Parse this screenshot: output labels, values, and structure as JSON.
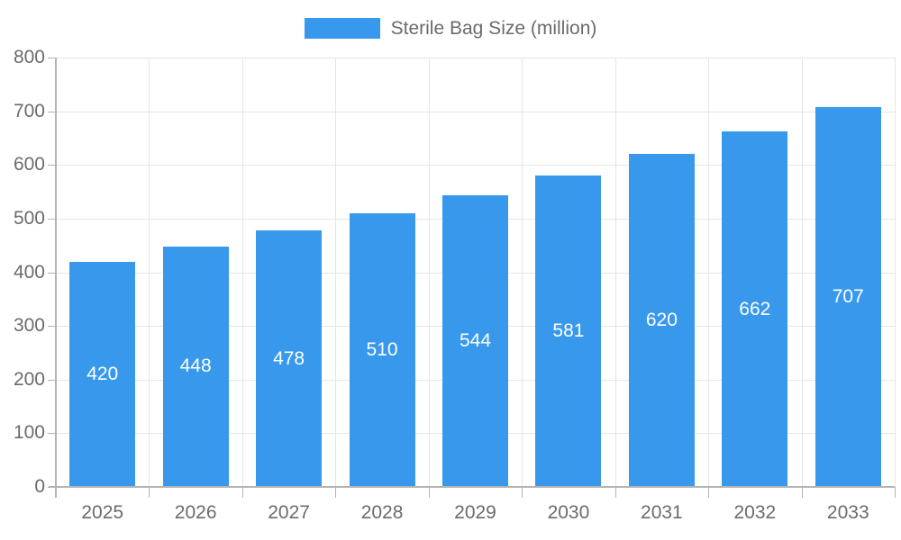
{
  "legend": {
    "label": "Sterile Bag Size (million)"
  },
  "chart_data": {
    "type": "bar",
    "title": "",
    "xlabel": "",
    "ylabel": "",
    "legend": [
      "Sterile Bag Size (million)"
    ],
    "legend_position": "top",
    "categories": [
      "2025",
      "2026",
      "2027",
      "2028",
      "2029",
      "2030",
      "2031",
      "2032",
      "2033"
    ],
    "series": [
      {
        "name": "Sterile Bag Size (million)",
        "values": [
          420,
          448,
          478,
          510,
          544,
          581,
          620,
          662,
          707
        ]
      }
    ],
    "bar_value_labels_shown": true,
    "ylim": [
      0,
      800
    ],
    "yticks": [
      0,
      100,
      200,
      300,
      400,
      500,
      600,
      700,
      800
    ],
    "grid": true,
    "colors": {
      "bar": "#3899ec",
      "bar_label": "#ffffff",
      "axis_text": "#6b6b6b",
      "legend_text": "#6b6b6b",
      "gridline": "#e6e6e6",
      "axis_line": "#b3b3b3",
      "background": "#ffffff"
    }
  }
}
